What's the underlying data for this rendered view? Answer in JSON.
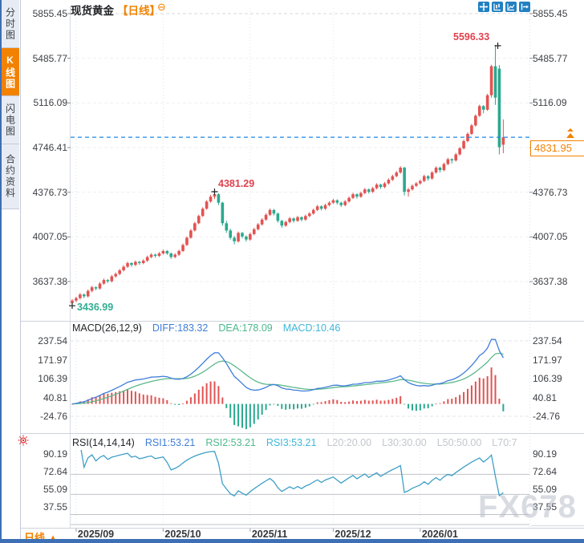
{
  "sidebar": {
    "tabs": [
      {
        "label": "分时图",
        "active": false
      },
      {
        "label": "K线图",
        "active": true
      },
      {
        "label": "闪电图",
        "active": false
      },
      {
        "label": "合约资料",
        "active": false
      }
    ]
  },
  "header": {
    "symbol": "现货黄金",
    "period": "【日线】",
    "collapse_icon": "⊖",
    "toolbar_icons": [
      "pan-cross-icon",
      "candlestick-view-icon",
      "line-chart-view-icon",
      "collapse-panel-icon"
    ]
  },
  "quote": {
    "last": "4831.95",
    "arrow_up": "▲"
  },
  "annotations": {
    "high": "5596.33",
    "swing_high": "4381.29",
    "low": "3436.99"
  },
  "macd_header": {
    "name": "MACD(26,12,9)",
    "diff": "DIFF:183.32",
    "dea": "DEA:178.09",
    "macd": "MACD:10.46"
  },
  "rsi_header": {
    "name": "RSI(14,14,14)",
    "rsi1": "RSI1:53.21",
    "rsi2": "RSI2:53.21",
    "rsi3": "RSI3:53.21",
    "l20": "L20:20.00",
    "l30": "L30:30.00",
    "l50": "L50:50.00",
    "l70": "L70:7"
  },
  "bottom": {
    "period": "日线",
    "arrow": "▲"
  },
  "watermark": "FX678",
  "chart_data": {
    "type": "candlestick",
    "title": "现货黄金 日线",
    "y_axis_main": [
      5855.45,
      5485.77,
      5116.09,
      4746.41,
      4376.73,
      4007.05,
      3637.38
    ],
    "y_axis_macd": [
      237.54,
      171.97,
      106.39,
      40.81,
      -24.76
    ],
    "y_axis_rsi": [
      90.19,
      72.64,
      55.09,
      37.55
    ],
    "rsi_levels": [
      70,
      50,
      30,
      20
    ],
    "x_axis_months": [
      {
        "label": "2025/09",
        "index": 1
      },
      {
        "label": "2025/10",
        "index": 23
      },
      {
        "label": "2025/11",
        "index": 45
      },
      {
        "label": "2025/12",
        "index": 66
      },
      {
        "label": "2026/01",
        "index": 88
      }
    ],
    "last_price": 4831.95,
    "marker_indexes": {
      "low": 0,
      "swing_high": 36,
      "high": 107
    },
    "marker_prices": {
      "low": 3436.99,
      "swing_high": 4381.29,
      "high": 5596.33
    },
    "colors": {
      "up": "#e25352",
      "down": "#2ba98e",
      "price_line": "#1e87e5",
      "diff_line": "#3f7ed8",
      "dea_line": "#5cb98b",
      "rsi_line": "#3e9fc6",
      "grid": "#dfe3e9",
      "level_line": "#bfc3c9",
      "accent": "#f28200",
      "toolbar_blue": "#2180c2"
    },
    "candles": [
      [
        3460,
        3492,
        3436.99,
        3480
      ],
      [
        3480,
        3512,
        3466,
        3500
      ],
      [
        3500,
        3542,
        3488,
        3530
      ],
      [
        3530,
        3538,
        3500,
        3515
      ],
      [
        3515,
        3572,
        3505,
        3560
      ],
      [
        3560,
        3602,
        3548,
        3590
      ],
      [
        3590,
        3598,
        3565,
        3580
      ],
      [
        3580,
        3632,
        3570,
        3620
      ],
      [
        3620,
        3662,
        3610,
        3650
      ],
      [
        3650,
        3658,
        3625,
        3640
      ],
      [
        3640,
        3692,
        3630,
        3680
      ],
      [
        3680,
        3712,
        3668,
        3700
      ],
      [
        3700,
        3742,
        3690,
        3730
      ],
      [
        3730,
        3772,
        3720,
        3760
      ],
      [
        3760,
        3802,
        3750,
        3790
      ],
      [
        3790,
        3798,
        3760,
        3775
      ],
      [
        3775,
        3812,
        3765,
        3800
      ],
      [
        3800,
        3808,
        3775,
        3790
      ],
      [
        3790,
        3822,
        3780,
        3810
      ],
      [
        3810,
        3852,
        3800,
        3840
      ],
      [
        3840,
        3872,
        3830,
        3860
      ],
      [
        3860,
        3868,
        3835,
        3850
      ],
      [
        3850,
        3882,
        3840,
        3870
      ],
      [
        3870,
        3902,
        3860,
        3890
      ],
      [
        3890,
        3898,
        3858,
        3870
      ],
      [
        3870,
        3878,
        3825,
        3840
      ],
      [
        3840,
        3872,
        3830,
        3860
      ],
      [
        3860,
        3902,
        3850,
        3890
      ],
      [
        3890,
        3952,
        3882,
        3940
      ],
      [
        3940,
        4012,
        3932,
        4000
      ],
      [
        4000,
        4072,
        3992,
        4060
      ],
      [
        4060,
        4132,
        4052,
        4120
      ],
      [
        4120,
        4192,
        4112,
        4180
      ],
      [
        4180,
        4252,
        4172,
        4240
      ],
      [
        4240,
        4312,
        4232,
        4300
      ],
      [
        4300,
        4355,
        4290,
        4340
      ],
      [
        4340,
        4381.29,
        4320,
        4360
      ],
      [
        4360,
        4368,
        4270,
        4290
      ],
      [
        4290,
        4298,
        4100,
        4120
      ],
      [
        4120,
        4140,
        4040,
        4060
      ],
      [
        4060,
        4075,
        3985,
        4000
      ],
      [
        4000,
        4015,
        3945,
        3970
      ],
      [
        3970,
        4052,
        3960,
        4040
      ],
      [
        4040,
        4048,
        3995,
        4010
      ],
      [
        4010,
        4020,
        3968,
        3985
      ],
      [
        3985,
        4042,
        3975,
        4030
      ],
      [
        4030,
        4082,
        4020,
        4070
      ],
      [
        4070,
        4122,
        4060,
        4110
      ],
      [
        4110,
        4162,
        4100,
        4150
      ],
      [
        4150,
        4202,
        4140,
        4190
      ],
      [
        4190,
        4242,
        4180,
        4230
      ],
      [
        4230,
        4238,
        4185,
        4200
      ],
      [
        4200,
        4208,
        4125,
        4140
      ],
      [
        4140,
        4148,
        4082,
        4100
      ],
      [
        4100,
        4142,
        4090,
        4130
      ],
      [
        4130,
        4172,
        4120,
        4160
      ],
      [
        4160,
        4168,
        4125,
        4140
      ],
      [
        4140,
        4182,
        4130,
        4170
      ],
      [
        4170,
        4178,
        4135,
        4150
      ],
      [
        4150,
        4192,
        4140,
        4180
      ],
      [
        4180,
        4212,
        4170,
        4200
      ],
      [
        4200,
        4242,
        4190,
        4230
      ],
      [
        4230,
        4272,
        4220,
        4260
      ],
      [
        4260,
        4268,
        4225,
        4240
      ],
      [
        4240,
        4282,
        4230,
        4270
      ],
      [
        4270,
        4302,
        4260,
        4290
      ],
      [
        4290,
        4322,
        4280,
        4310
      ],
      [
        4310,
        4318,
        4275,
        4290
      ],
      [
        4290,
        4298,
        4255,
        4270
      ],
      [
        4270,
        4312,
        4260,
        4300
      ],
      [
        4300,
        4342,
        4290,
        4330
      ],
      [
        4330,
        4372,
        4320,
        4360
      ],
      [
        4360,
        4368,
        4325,
        4340
      ],
      [
        4340,
        4382,
        4330,
        4370
      ],
      [
        4370,
        4412,
        4360,
        4400
      ],
      [
        4400,
        4408,
        4365,
        4380
      ],
      [
        4380,
        4422,
        4370,
        4410
      ],
      [
        4410,
        4452,
        4400,
        4440
      ],
      [
        4440,
        4448,
        4405,
        4420
      ],
      [
        4420,
        4462,
        4410,
        4450
      ],
      [
        4450,
        4492,
        4440,
        4480
      ],
      [
        4480,
        4522,
        4470,
        4510
      ],
      [
        4510,
        4552,
        4500,
        4540
      ],
      [
        4540,
        4592,
        4530,
        4580
      ],
      [
        4580,
        4588,
        4350,
        4380
      ],
      [
        4380,
        4412,
        4340,
        4400
      ],
      [
        4400,
        4442,
        4390,
        4430
      ],
      [
        4430,
        4462,
        4420,
        4450
      ],
      [
        4450,
        4482,
        4440,
        4470
      ],
      [
        4470,
        4522,
        4460,
        4510
      ],
      [
        4510,
        4518,
        4472,
        4490
      ],
      [
        4490,
        4552,
        4480,
        4540
      ],
      [
        4540,
        4592,
        4530,
        4580
      ],
      [
        4580,
        4588,
        4540,
        4560
      ],
      [
        4560,
        4622,
        4550,
        4610
      ],
      [
        4610,
        4662,
        4600,
        4650
      ],
      [
        4650,
        4658,
        4615,
        4640
      ],
      [
        4640,
        4702,
        4630,
        4690
      ],
      [
        4690,
        4752,
        4680,
        4740
      ],
      [
        4740,
        4812,
        4730,
        4800
      ],
      [
        4800,
        4872,
        4790,
        4860
      ],
      [
        4860,
        4942,
        4850,
        4930
      ],
      [
        4930,
        5022,
        4920,
        5010
      ],
      [
        5010,
        5102,
        5000,
        5090
      ],
      [
        5090,
        5098,
        5030,
        5060
      ],
      [
        5060,
        5192,
        5050,
        5180
      ],
      [
        5180,
        5432,
        5160,
        5420
      ],
      [
        5420,
        5596.33,
        5100,
        5160
      ],
      [
        5400,
        5430,
        4690,
        4750
      ],
      [
        4770,
        4980,
        4700,
        4831.95
      ]
    ],
    "indicators": {
      "macd_params": [
        26,
        12,
        9
      ],
      "rsi_params": [
        14,
        14,
        14
      ]
    }
  }
}
